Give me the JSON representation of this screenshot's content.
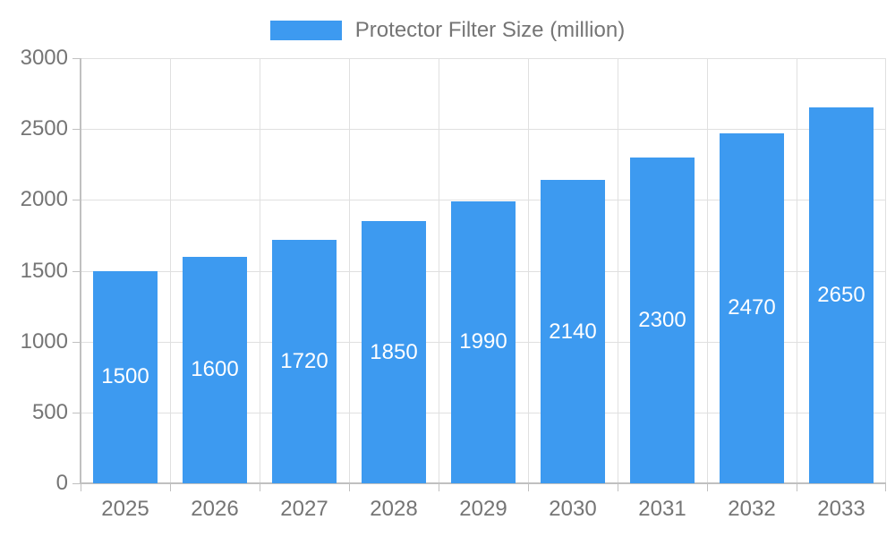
{
  "chart_data": {
    "type": "bar",
    "title": "",
    "legend": "Protector Filter Size (million)",
    "legend_position": "top",
    "categories": [
      "2025",
      "2026",
      "2027",
      "2028",
      "2029",
      "2030",
      "2031",
      "2032",
      "2033"
    ],
    "values": [
      1500,
      1600,
      1720,
      1850,
      1990,
      2140,
      2300,
      2470,
      2650
    ],
    "bar_labels": [
      1500,
      1600,
      1720,
      1850,
      1990,
      2140,
      2300,
      2470,
      2650
    ],
    "xlabel": "",
    "ylabel": "",
    "ylim": [
      0,
      3000
    ],
    "yticks": [
      0,
      500,
      1000,
      1500,
      2000,
      2500,
      3000
    ],
    "grid": true,
    "colors": {
      "bar": "#3D9AF0",
      "axis_text": "#757575",
      "gridline": "#e0e0e0",
      "axis_line": "#c0c0c0",
      "bar_label_text": "#ffffff",
      "background": "#ffffff"
    }
  }
}
